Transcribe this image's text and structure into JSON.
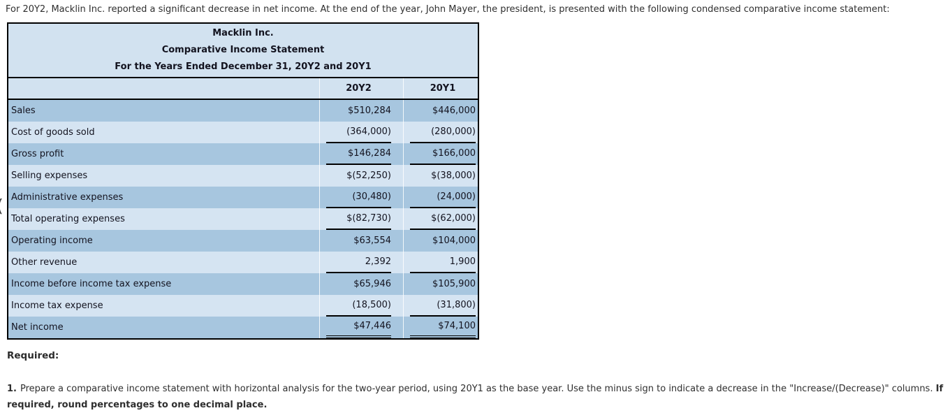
{
  "intro_text": "For 20Y2, Macklin Inc. reported a significant decrease in net income. At the end of the year, John Mayer, the president, is presented with the following condensed comparative income statement:",
  "statement": {
    "title_lines": [
      "Macklin Inc.",
      "Comparative Income Statement",
      "For the Years Ended December 31, 20Y2 and 20Y1"
    ],
    "columns": [
      "20Y2",
      "20Y1"
    ],
    "rows": [
      {
        "label": "Sales",
        "y2": "$510,284",
        "y1": "$446,000",
        "rule": "none"
      },
      {
        "label": "Cost of goods sold",
        "y2": "(364,000)",
        "y1": "(280,000)",
        "rule": "single"
      },
      {
        "label": "Gross profit",
        "y2": "$146,284",
        "y1": "$166,000",
        "rule": "single"
      },
      {
        "label": "Selling expenses",
        "y2": "$(52,250)",
        "y1": "$(38,000)",
        "rule": "none"
      },
      {
        "label": "Administrative expenses",
        "y2": "(30,480)",
        "y1": "(24,000)",
        "rule": "single"
      },
      {
        "label": "Total operating expenses",
        "y2": "$(82,730)",
        "y1": "$(62,000)",
        "rule": "single"
      },
      {
        "label": "Operating income",
        "y2": "$63,554",
        "y1": "$104,000",
        "rule": "none"
      },
      {
        "label": "Other revenue",
        "y2": "2,392",
        "y1": "1,900",
        "rule": "single"
      },
      {
        "label": "Income before income tax expense",
        "y2": "$65,946",
        "y1": "$105,900",
        "rule": "none"
      },
      {
        "label": "Income tax expense",
        "y2": "(18,500)",
        "y1": "(31,800)",
        "rule": "single"
      },
      {
        "label": "Net income",
        "y2": "$47,446",
        "y1": "$74,100",
        "rule": "double"
      }
    ]
  },
  "required": {
    "heading": "Required:",
    "item_number": "1.",
    "item_text": "Prepare a comparative income statement with horizontal analysis for the two-year period, using 20Y1 as the base year. Use the minus sign to indicate a decrease in the \"Increase/(Decrease)\" columns. ",
    "item_bold": "If required, round percentages to one decimal place."
  },
  "stray_glyph": "(",
  "colors": {
    "row_dark": "#a7c6df",
    "row_light": "#d5e4f2",
    "header_bg": "#d2e2f0",
    "rule_color": "#000000",
    "table_text": "#13131f",
    "body_text": "#2f2f2f"
  }
}
